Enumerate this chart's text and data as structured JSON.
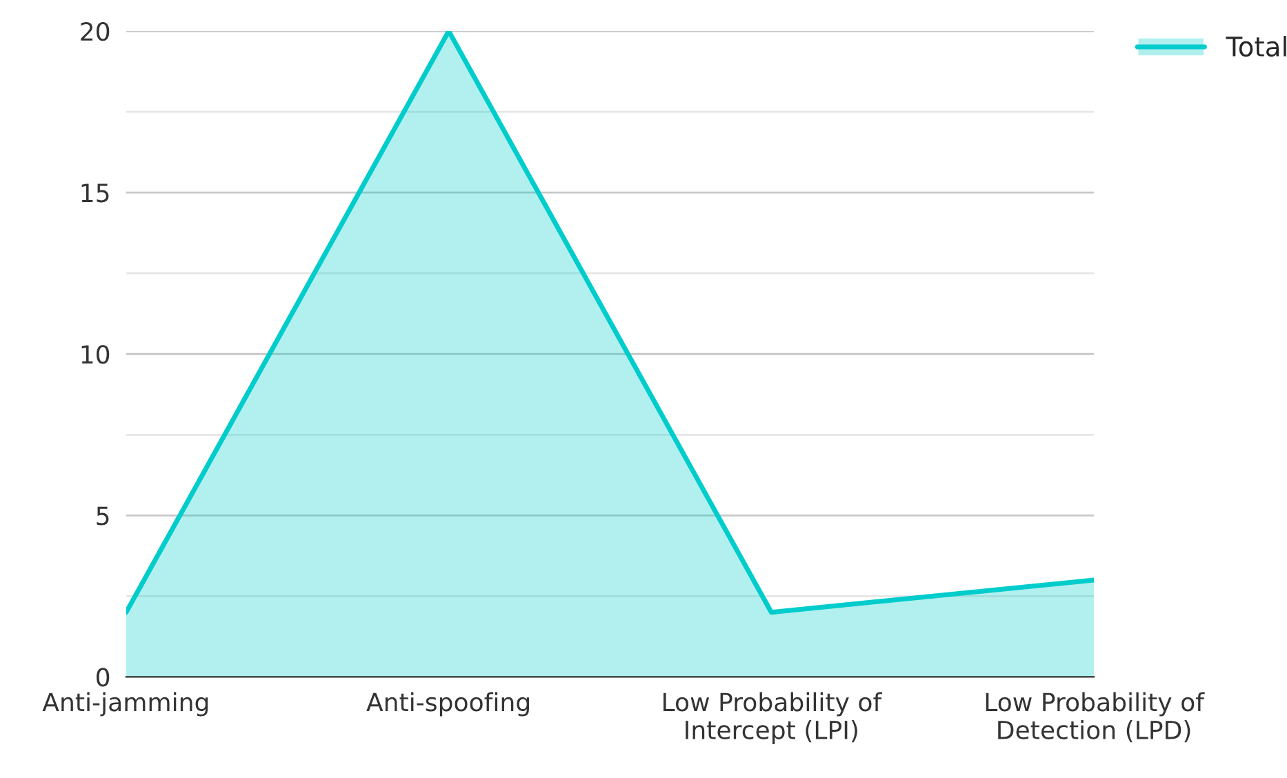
{
  "chart_data": {
    "type": "area",
    "categories": [
      "Anti-jamming",
      "Anti-spoofing",
      "Low Probability of\nIntercept (LPI)",
      "Low Probability of\nDetection (LPD)"
    ],
    "series": [
      {
        "name": "Total",
        "color": "#00cccc",
        "values": [
          2,
          20,
          2,
          3
        ]
      }
    ],
    "ylim": [
      0,
      20
    ],
    "yticks": [
      0,
      {
        "value": 2.5,
        "label": null
      },
      5,
      {
        "value": 7.5,
        "label": null
      },
      10,
      {
        "value": 12.5,
        "label": null
      },
      15,
      {
        "value": 17.5,
        "label": null
      },
      20
    ],
    "grid": "y",
    "legend": "top right"
  }
}
